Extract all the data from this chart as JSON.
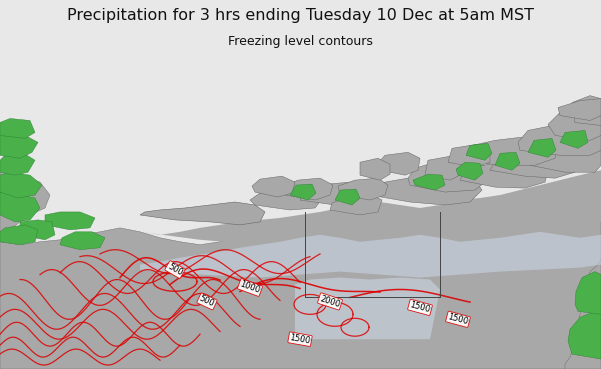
{
  "title": "Precipitation for 3 hrs ending Tuesday 10 Dec at 5am MST",
  "subtitle": "Freezing level contours",
  "title_fontsize": 11.5,
  "subtitle_fontsize": 9,
  "fig_width": 6.01,
  "fig_height": 3.69,
  "ocean_color": "#b8cfe8",
  "land_color": "#a8a8a8",
  "land_color2": "#989898",
  "green_color": "#4ab04a",
  "green_color2": "#3a9a3a",
  "snow_color": "#d0ddf0",
  "header_bg": "#e8e8e8",
  "contour_color": "#dd0000",
  "border_color": "#555555",
  "title_color": "#111111"
}
